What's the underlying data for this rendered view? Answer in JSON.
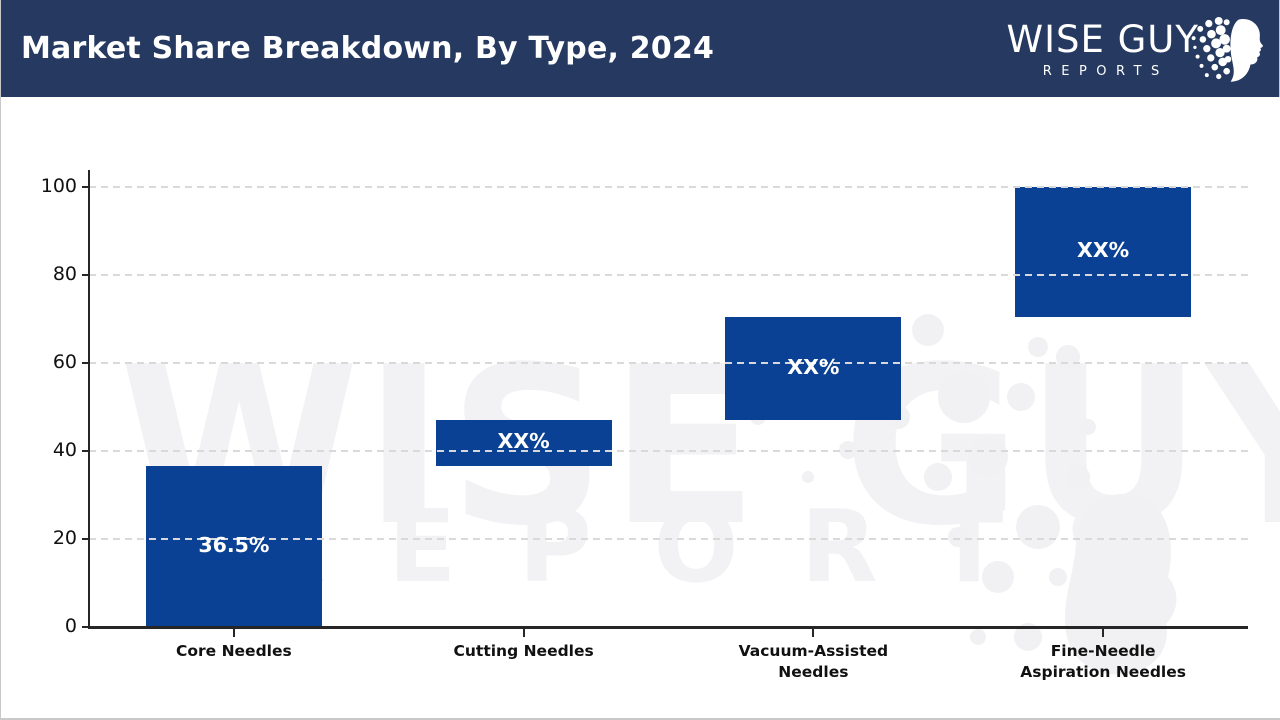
{
  "header": {
    "title": "Market Share Breakdown, By Type, 2024",
    "logo": {
      "line1": "WISE GUY",
      "line2": "REPORTS"
    }
  },
  "watermark": {
    "line1": "WISE GUY",
    "line2": "REPORTS"
  },
  "colors": {
    "header_bg": "#253961",
    "bar": "#0a4194",
    "grid": "#d9d9d9",
    "axis": "#262626",
    "watermark": "#f2f2f4",
    "bar_label": "#ffffff"
  },
  "chart_data": {
    "type": "bar",
    "subtype": "waterfall",
    "title": "Market Share Breakdown, By Type, 2024",
    "categories": [
      "Core Needles",
      "Cutting Needles",
      "Vacuum-Assisted Needles",
      "Fine-Needle Aspiration Needles"
    ],
    "category_lines": [
      [
        "Core Needles"
      ],
      [
        "Cutting Needles"
      ],
      [
        "Vacuum-Assisted",
        "Needles"
      ],
      [
        "Fine-Needle",
        "Aspiration Needles"
      ]
    ],
    "segments": [
      {
        "category": "Core Needles",
        "start": 0,
        "end": 36.5,
        "label": "36.5%"
      },
      {
        "category": "Cutting Needles",
        "start": 36.5,
        "end": 47,
        "label": "XX%"
      },
      {
        "category": "Vacuum-Assisted Needles",
        "start": 47,
        "end": 70.5,
        "label": "XX%"
      },
      {
        "category": "Fine-Needle Aspiration Needles",
        "start": 70.5,
        "end": 100,
        "label": "XX%"
      }
    ],
    "yticks": [
      0,
      20,
      40,
      60,
      80,
      100
    ],
    "ylim": [
      0,
      100
    ],
    "xlabel": "",
    "ylabel": "",
    "grid": "dashed-horizontal",
    "legend": "none"
  }
}
